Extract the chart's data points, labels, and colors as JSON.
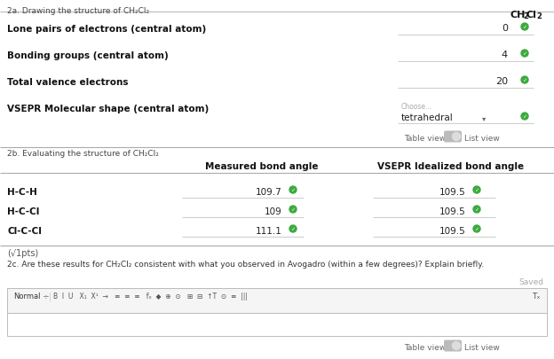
{
  "bg_color": "#ffffff",
  "title_2a": "2a. Drawing the structure of CH₂Cl₂",
  "section_2a_rows": [
    {
      "label": "Lone pairs of electrons (central atom)",
      "value": "0"
    },
    {
      "label": "Bonding groups (central atom)",
      "value": "4"
    },
    {
      "label": "Total valence electrons",
      "value": "20"
    },
    {
      "label": "VSEPR Molecular shape (central atom)",
      "value": "tetrahedral",
      "choose": "Choose..."
    }
  ],
  "title_2b": "2b. Evaluating the structure of CH₂Cl₂",
  "col_headers": [
    "Measured bond angle",
    "VSEPR Idealized bond angle"
  ],
  "bond_rows": [
    {
      "label": "H-C-H",
      "measured": "109.7",
      "idealized": "109.5"
    },
    {
      "label": "H-C-Cl",
      "measured": "109",
      "idealized": "109.5"
    },
    {
      "label": "Cl-C-Cl",
      "measured": "111.1",
      "idealized": "109.5"
    }
  ],
  "points_text": "(√1pts)",
  "title_2c": "2c. Are these results for CH₂Cl₂ consistent with what you observed in Avogadro (within a few degrees)? Explain briefly.",
  "saved_text": "Saved",
  "green": "#3eaa3e",
  "gray_line": "#cccccc",
  "dark_line": "#aaaaaa",
  "text_dark": "#222222",
  "text_gray": "#888888",
  "toolbar_bg": "#f5f5f5",
  "toolbar_border": "#bbbbbb"
}
